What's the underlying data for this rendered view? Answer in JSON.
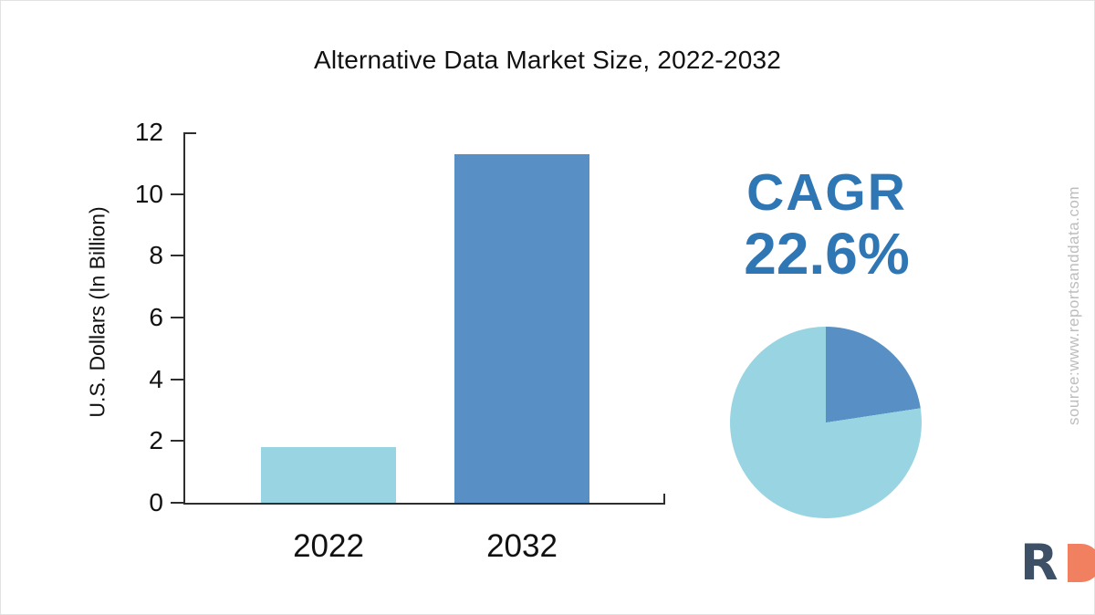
{
  "title": "Alternative Data Market Size, 2022-2032",
  "source": "source:www.reportsanddata.com",
  "cagr": {
    "label": "CAGR",
    "value": "22.6%"
  },
  "logo": {
    "letter": "R"
  },
  "colors": {
    "light_blue": "#98d4e1",
    "steel_blue": "#5890c6",
    "cagr_blue": "#2f76b4",
    "axis": "#2e2e2e",
    "source_gray": "#bdbdbd",
    "logo_navy": "#3e5066",
    "logo_orange": "#f0805f"
  },
  "chart_data": [
    {
      "type": "bar",
      "title": "Alternative Data Market Size, 2022-2032",
      "categories": [
        "2022",
        "2032"
      ],
      "values": [
        1.8,
        11.3
      ],
      "bar_colors": [
        "#98d4e1",
        "#5890c6"
      ],
      "xlabel": "",
      "ylabel": "U.S. Dollars (In Billion)",
      "ylim": [
        0,
        12
      ],
      "yticks": [
        0,
        2,
        4,
        6,
        8,
        10,
        12
      ],
      "grid": false,
      "legend": "none"
    },
    {
      "type": "pie",
      "label": "CAGR 22.6%",
      "slices": [
        "CAGR share",
        "remainder"
      ],
      "values": [
        22.6,
        77.4
      ],
      "slice_colors": [
        "#5890c6",
        "#98d4e1"
      ],
      "start_angle_deg": 0,
      "direction": "clockwise"
    }
  ]
}
